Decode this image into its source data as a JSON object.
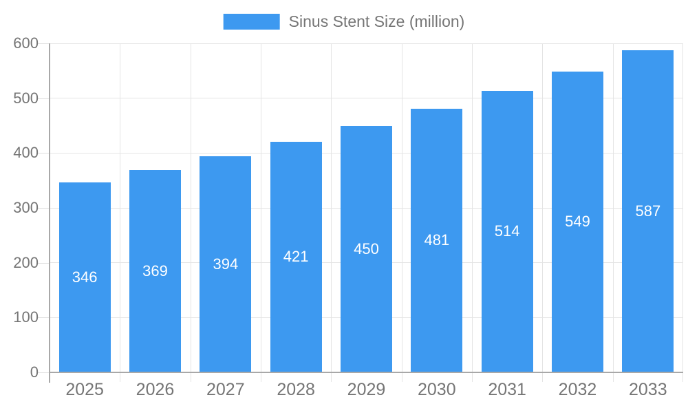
{
  "legend": {
    "label": "Sinus Stent Size (million)"
  },
  "colors": {
    "bar": "#3d99f0",
    "grid": "#e4e4e4",
    "axis": "#a8a8a8",
    "tick": "#dedede",
    "text": "#757575",
    "value_text": "#ffffff",
    "background": "#ffffff"
  },
  "chart_data": {
    "type": "bar",
    "categories": [
      "2025",
      "2026",
      "2027",
      "2028",
      "2029",
      "2030",
      "2031",
      "2032",
      "2033"
    ],
    "values": [
      346,
      369,
      394,
      421,
      450,
      481,
      514,
      549,
      587
    ],
    "series": [
      {
        "name": "Sinus Stent Size (million)",
        "values": [
          346,
          369,
          394,
          421,
          450,
          481,
          514,
          549,
          587
        ]
      }
    ],
    "title": "",
    "xlabel": "",
    "ylabel": "",
    "ylim": [
      0,
      600
    ],
    "ytick_step": 100,
    "yticks": [
      0,
      100,
      200,
      300,
      400,
      500,
      600
    ],
    "grid": true,
    "legend_position": "top-center",
    "value_labels": "inside-center",
    "bar_color": "#3d99f0"
  }
}
